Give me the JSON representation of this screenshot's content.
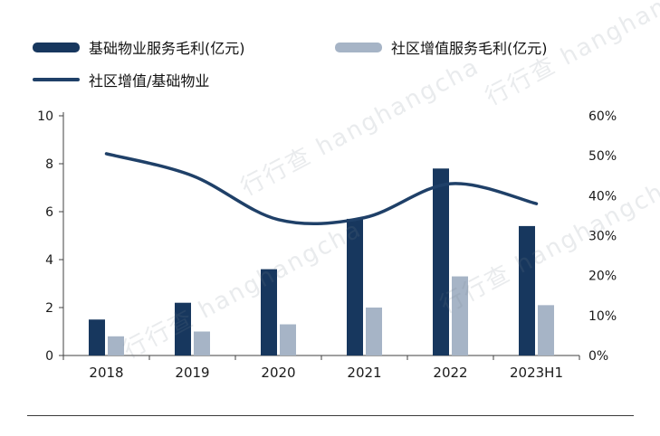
{
  "chart_data": {
    "type": "bar",
    "title": "",
    "categories": [
      "2018",
      "2019",
      "2020",
      "2021",
      "2022",
      "2023H1"
    ],
    "series": [
      {
        "name": "基础物业服务毛利(亿元)",
        "chart": "bar",
        "axis": "left",
        "color": "#17375e",
        "values": [
          1.5,
          2.2,
          3.6,
          5.7,
          7.8,
          5.4
        ]
      },
      {
        "name": "社区增值服务毛利(亿元)",
        "chart": "bar",
        "axis": "left",
        "color": "#a6b4c6",
        "values": [
          0.8,
          1.0,
          1.3,
          2.0,
          3.3,
          2.1
        ]
      },
      {
        "name": "社区增值/基础物业",
        "chart": "line",
        "axis": "right",
        "color": "#1f4068",
        "values": [
          50.5,
          45,
          34,
          34.5,
          43,
          38
        ]
      }
    ],
    "left_axis": {
      "min": 0,
      "max": 10,
      "ticks": [
        0,
        2,
        4,
        6,
        8,
        10
      ],
      "suffix": ""
    },
    "right_axis": {
      "min": 0,
      "max": 60,
      "ticks": [
        0,
        10,
        20,
        30,
        40,
        50,
        60
      ],
      "suffix": "%"
    },
    "legend_position": "top",
    "grid": false
  },
  "watermark": {
    "text": "行行查 hanghangcha"
  }
}
